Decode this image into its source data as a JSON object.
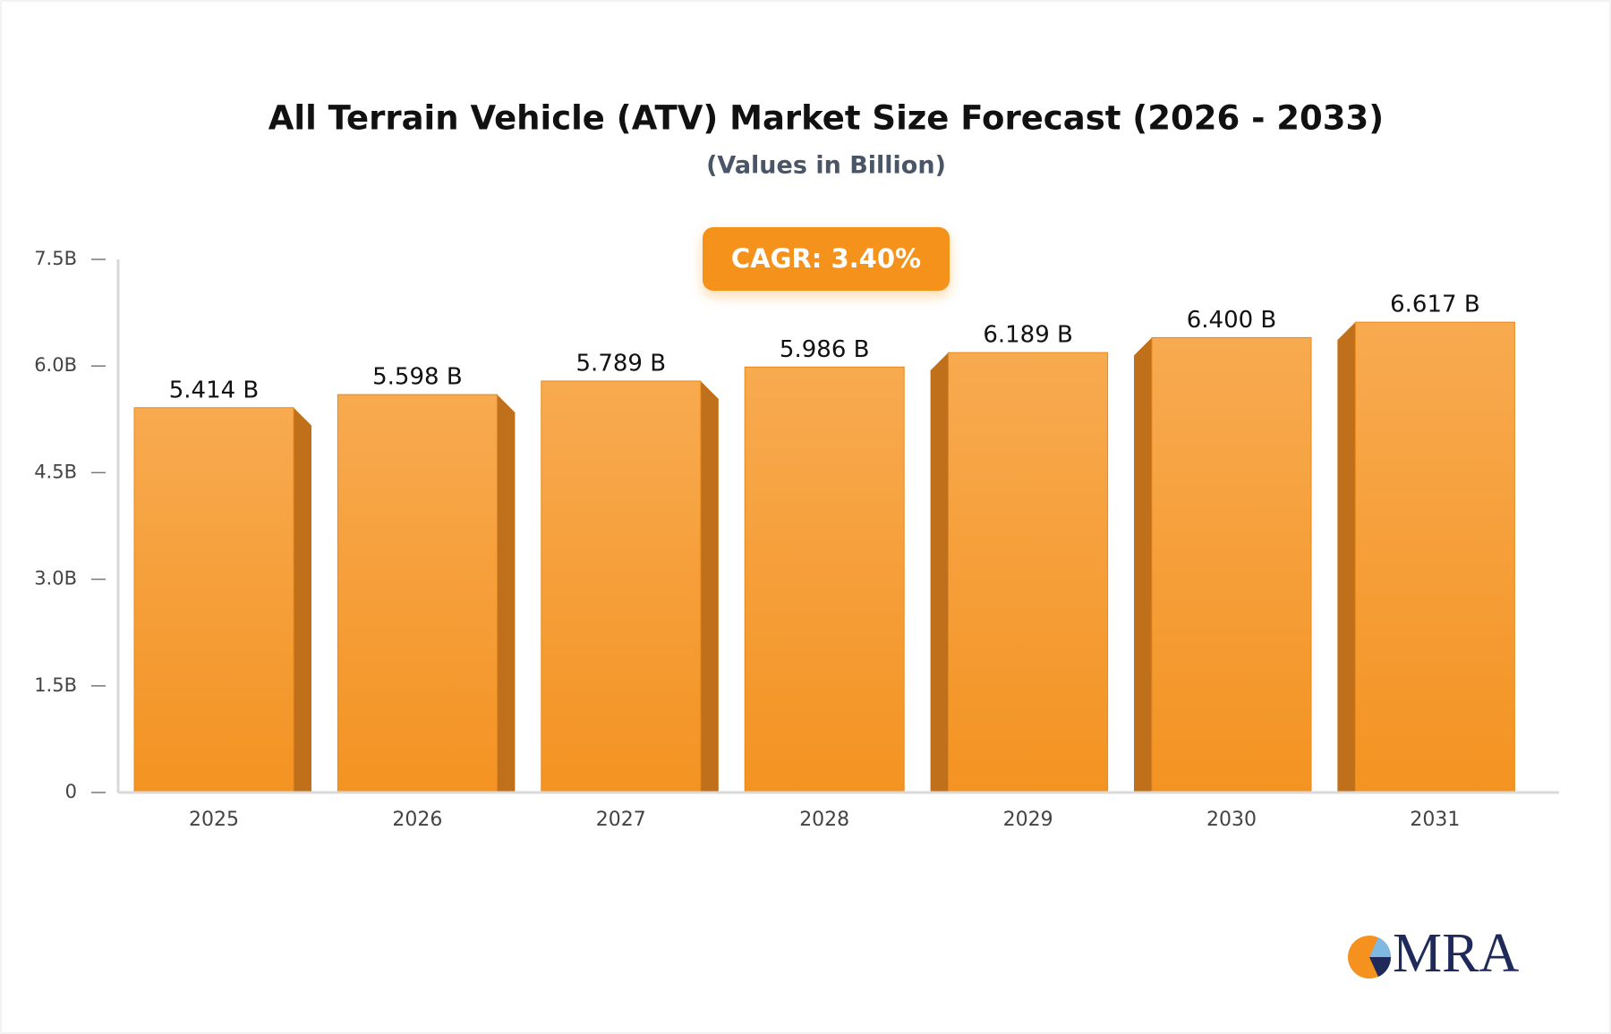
{
  "chart_data": {
    "type": "bar",
    "title": "All Terrain Vehicle (ATV) Market Size Forecast (2026 - 2033)",
    "subtitle": "(Values in Billion)",
    "annotation": "CAGR: 3.40%",
    "logo_text": "MRA",
    "categories": [
      "2025",
      "2026",
      "2027",
      "2028",
      "2029",
      "2030",
      "2031"
    ],
    "values": [
      5.414,
      5.598,
      5.789,
      5.986,
      6.189,
      6.4,
      6.617
    ],
    "value_labels": [
      "5.414 B",
      "5.598 B",
      "5.789 B",
      "5.986 B",
      "6.189 B",
      "6.400 B",
      "6.617 B"
    ],
    "color": "#f5a03a",
    "ylim": [
      0,
      7.5
    ],
    "yticks": [
      0,
      {
        "value": 1.5,
        "label": "1.5B"
      },
      {
        "value": 3,
        "label": "3.0B"
      },
      {
        "value": 4.5,
        "label": "4.5B"
      },
      {
        "value": 6,
        "label": "6.0B"
      },
      {
        "value": 7.5,
        "label": "7.5B"
      }
    ],
    "grid": false
  }
}
